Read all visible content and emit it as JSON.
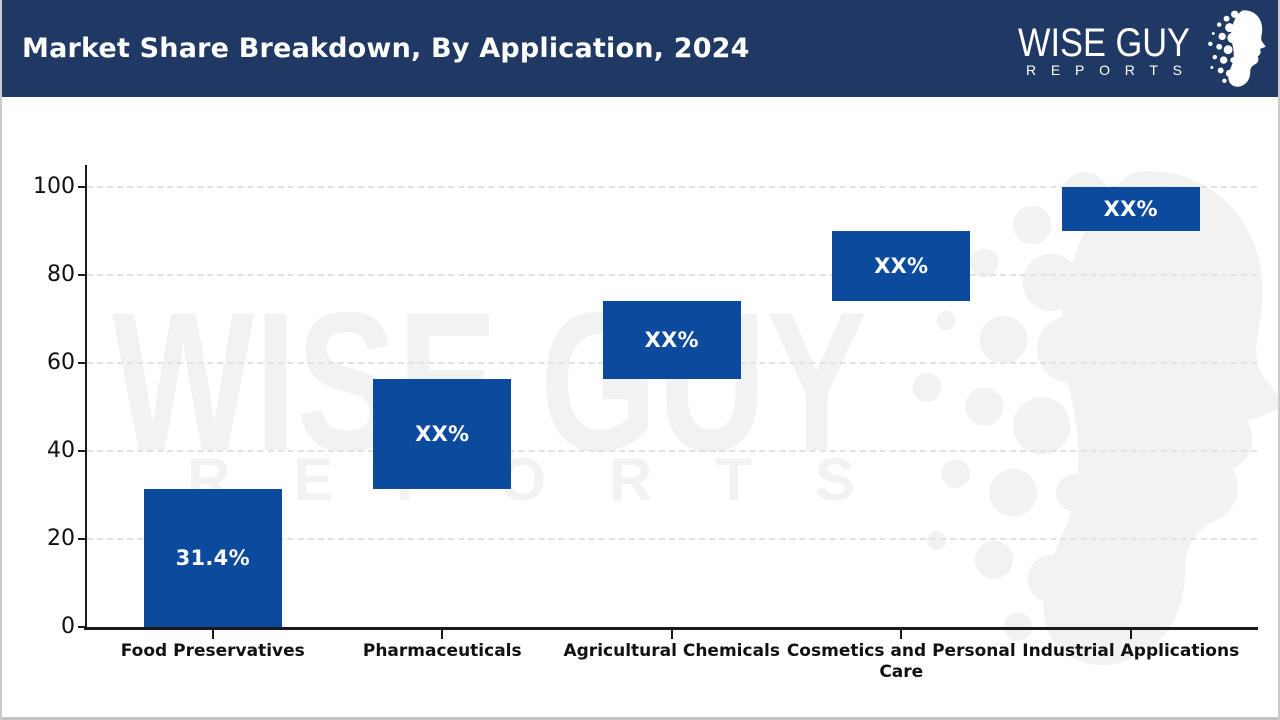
{
  "header": {
    "title": "Market Share Breakdown, By Application, 2024"
  },
  "logo": {
    "brand_top": "WISE GUY",
    "brand_bottom": "REPORTS"
  },
  "watermark": {
    "brand_top": "WISE GUY",
    "brand_bottom": "REPORTS"
  },
  "chart_data": {
    "type": "bar",
    "subtype": "waterfall",
    "title": "Market Share Breakdown, By Application, 2024",
    "categories": [
      "Food Preservatives",
      "Pharmaceuticals",
      "Agricultural Chemicals",
      "Cosmetics and Personal Care",
      "Industrial Applications"
    ],
    "segments": [
      {
        "category": "Food Preservatives",
        "label": "31.4%",
        "start": 0,
        "end": 31.4,
        "value": 31.4
      },
      {
        "category": "Pharmaceuticals",
        "label": "XX%",
        "start": 31.4,
        "end": 56.4,
        "value": 25.0
      },
      {
        "category": "Agricultural Chemicals",
        "label": "XX%",
        "start": 56.4,
        "end": 74.2,
        "value": 17.8
      },
      {
        "category": "Cosmetics and Personal Care",
        "label": "XX%",
        "start": 74.2,
        "end": 90.0,
        "value": 15.8
      },
      {
        "category": "Industrial Applications",
        "label": "XX%",
        "start": 90.0,
        "end": 100.0,
        "value": 10.0
      }
    ],
    "yticks": [
      0,
      20,
      40,
      60,
      80,
      100
    ],
    "ylim": [
      0,
      105
    ],
    "xlabel": "",
    "ylabel": "",
    "grid": {
      "axis": "y",
      "style": "dashed",
      "color": "#e2e2e2"
    },
    "legend": "none",
    "colors": {
      "bar": "#0c4a9e",
      "bar_label": "#ffffff",
      "header_bg": "#1f3864",
      "axis": "#1a1a1a",
      "watermark": "#f2f2f2"
    }
  }
}
